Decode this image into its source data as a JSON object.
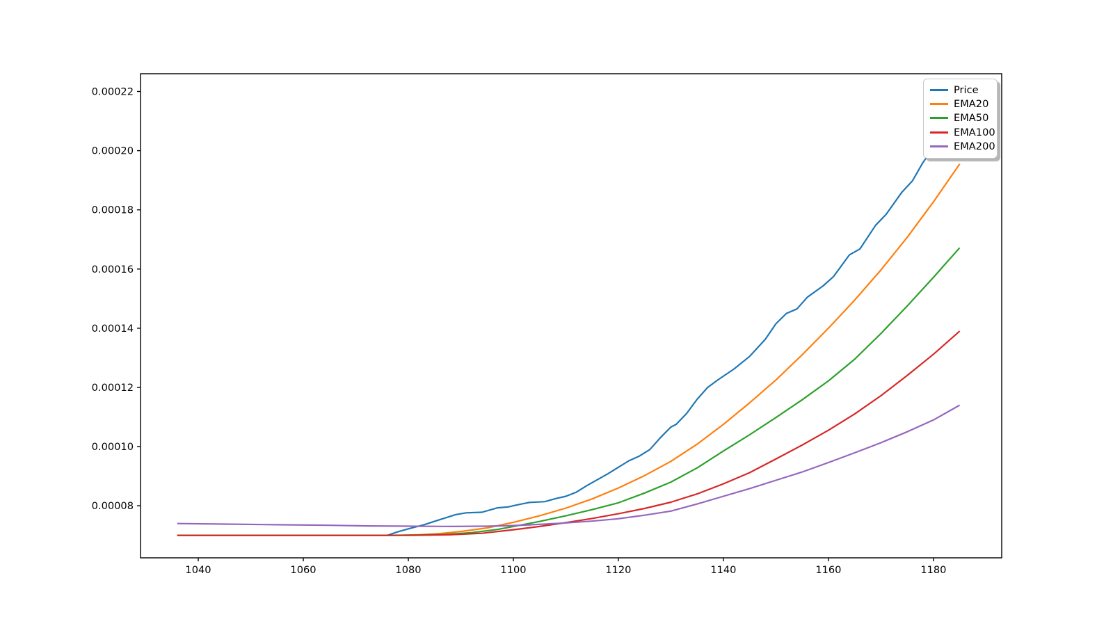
{
  "figure": {
    "background": "#ffffff",
    "text_color": "#000000",
    "spine_color": "#000000"
  },
  "chart_data": {
    "type": "line",
    "title": "",
    "xlabel": "",
    "ylabel": "",
    "grid": false,
    "xlim": [
      1029,
      1193
    ],
    "ylim": [
      6.24e-05,
      0.000226
    ],
    "x_ticks": [
      1040,
      1060,
      1080,
      1100,
      1120,
      1140,
      1160,
      1180
    ],
    "x_tick_labels": [
      "1040",
      "1060",
      "1080",
      "1100",
      "1120",
      "1140",
      "1160",
      "1180"
    ],
    "y_ticks": [
      8e-05,
      0.0001,
      0.00012,
      0.00014,
      0.00016,
      0.00018,
      0.0002,
      0.00022
    ],
    "y_tick_labels": [
      "0.00008",
      "0.00010",
      "0.00012",
      "0.00014",
      "0.00016",
      "0.00018",
      "0.00020",
      "0.00022"
    ],
    "legend": {
      "position": "upper right",
      "entries": [
        "Price",
        "EMA20",
        "EMA50",
        "EMA100",
        "EMA200"
      ]
    },
    "series": [
      {
        "name": "Price",
        "color": "#1f77b4",
        "points": [
          [
            1036,
            7e-05
          ],
          [
            1050,
            7e-05
          ],
          [
            1062,
            7e-05
          ],
          [
            1070,
            7e-05
          ],
          [
            1076,
            7e-05
          ],
          [
            1078,
            7.12e-05
          ],
          [
            1080,
            7.22e-05
          ],
          [
            1083,
            7.36e-05
          ],
          [
            1086,
            7.53e-05
          ],
          [
            1089,
            7.7e-05
          ],
          [
            1091,
            7.76e-05
          ],
          [
            1094,
            7.78e-05
          ],
          [
            1097,
            7.93e-05
          ],
          [
            1099,
            7.96e-05
          ],
          [
            1101,
            8.04e-05
          ],
          [
            1103,
            8.11e-05
          ],
          [
            1106,
            8.14e-05
          ],
          [
            1108,
            8.24e-05
          ],
          [
            1110,
            8.32e-05
          ],
          [
            1112,
            8.46e-05
          ],
          [
            1114,
            8.68e-05
          ],
          [
            1116,
            8.88e-05
          ],
          [
            1118,
            9.08e-05
          ],
          [
            1120,
            9.3e-05
          ],
          [
            1122,
            9.52e-05
          ],
          [
            1124,
            9.68e-05
          ],
          [
            1126,
            9.9e-05
          ],
          [
            1128,
            0.000103
          ],
          [
            1130,
            0.0001066
          ],
          [
            1131,
            0.0001075
          ],
          [
            1133,
            0.0001112
          ],
          [
            1135,
            0.000116
          ],
          [
            1137,
            0.00012
          ],
          [
            1139,
            0.0001226
          ],
          [
            1142,
            0.0001262
          ],
          [
            1145,
            0.0001305
          ],
          [
            1148,
            0.0001363
          ],
          [
            1150,
            0.0001415
          ],
          [
            1152,
            0.000145
          ],
          [
            1154,
            0.0001465
          ],
          [
            1156,
            0.0001505
          ],
          [
            1159,
            0.0001543
          ],
          [
            1161,
            0.0001575
          ],
          [
            1164,
            0.0001648
          ],
          [
            1166,
            0.0001668
          ],
          [
            1169,
            0.0001748
          ],
          [
            1171,
            0.0001785
          ],
          [
            1174,
            0.000186
          ],
          [
            1176,
            0.0001898
          ],
          [
            1178,
            0.000196
          ],
          [
            1180,
            0.000201
          ],
          [
            1182,
            0.0002072
          ],
          [
            1185,
            0.0002165
          ]
        ]
      },
      {
        "name": "EMA20",
        "color": "#ff7f0e",
        "points": [
          [
            1036,
            7e-05
          ],
          [
            1060,
            7e-05
          ],
          [
            1074,
            7e-05
          ],
          [
            1078,
            7e-05
          ],
          [
            1082,
            7.02e-05
          ],
          [
            1086,
            7.06e-05
          ],
          [
            1090,
            7.13e-05
          ],
          [
            1095,
            7.25e-05
          ],
          [
            1100,
            7.44e-05
          ],
          [
            1105,
            7.66e-05
          ],
          [
            1110,
            7.92e-05
          ],
          [
            1115,
            8.23e-05
          ],
          [
            1120,
            8.6e-05
          ],
          [
            1125,
            9.02e-05
          ],
          [
            1130,
            9.5e-05
          ],
          [
            1135,
            0.0001008
          ],
          [
            1140,
            0.0001075
          ],
          [
            1145,
            0.0001148
          ],
          [
            1150,
            0.0001225
          ],
          [
            1155,
            0.000131
          ],
          [
            1160,
            0.00014
          ],
          [
            1165,
            0.0001495
          ],
          [
            1170,
            0.0001597
          ],
          [
            1175,
            0.0001707
          ],
          [
            1180,
            0.0001827
          ],
          [
            1185,
            0.0001955
          ]
        ]
      },
      {
        "name": "EMA50",
        "color": "#2ca02c",
        "points": [
          [
            1036,
            7e-05
          ],
          [
            1060,
            7e-05
          ],
          [
            1075,
            7e-05
          ],
          [
            1082,
            7.01e-05
          ],
          [
            1087,
            7.03e-05
          ],
          [
            1092,
            7.09e-05
          ],
          [
            1097,
            7.2e-05
          ],
          [
            1100,
            7.3e-05
          ],
          [
            1105,
            7.47e-05
          ],
          [
            1110,
            7.66e-05
          ],
          [
            1115,
            7.87e-05
          ],
          [
            1120,
            8.1e-05
          ],
          [
            1125,
            8.43e-05
          ],
          [
            1130,
            8.8e-05
          ],
          [
            1135,
            9.28e-05
          ],
          [
            1140,
            9.85e-05
          ],
          [
            1145,
            0.000104
          ],
          [
            1150,
            0.0001098
          ],
          [
            1155,
            0.0001158
          ],
          [
            1160,
            0.0001222
          ],
          [
            1165,
            0.0001295
          ],
          [
            1170,
            0.0001382
          ],
          [
            1175,
            0.0001475
          ],
          [
            1180,
            0.0001572
          ],
          [
            1185,
            0.0001672
          ]
        ]
      },
      {
        "name": "EMA100",
        "color": "#d62728",
        "points": [
          [
            1036,
            7e-05
          ],
          [
            1060,
            7e-05
          ],
          [
            1080,
            7e-05
          ],
          [
            1088,
            7.02e-05
          ],
          [
            1094,
            7.07e-05
          ],
          [
            1100,
            7.19e-05
          ],
          [
            1105,
            7.3e-05
          ],
          [
            1110,
            7.43e-05
          ],
          [
            1115,
            7.57e-05
          ],
          [
            1120,
            7.73e-05
          ],
          [
            1125,
            7.91e-05
          ],
          [
            1130,
            8.12e-05
          ],
          [
            1135,
            8.4e-05
          ],
          [
            1140,
            8.74e-05
          ],
          [
            1145,
            9.12e-05
          ],
          [
            1150,
            9.58e-05
          ],
          [
            1155,
            0.0001005
          ],
          [
            1160,
            0.0001055
          ],
          [
            1165,
            0.000111
          ],
          [
            1170,
            0.0001172
          ],
          [
            1175,
            0.000124
          ],
          [
            1180,
            0.0001312
          ],
          [
            1185,
            0.000139
          ]
        ]
      },
      {
        "name": "EMA200",
        "color": "#9467bd",
        "points": [
          [
            1036,
            7.4e-05
          ],
          [
            1045,
            7.38e-05
          ],
          [
            1055,
            7.36e-05
          ],
          [
            1065,
            7.34e-05
          ],
          [
            1072,
            7.32e-05
          ],
          [
            1080,
            7.31e-05
          ],
          [
            1088,
            7.3e-05
          ],
          [
            1095,
            7.31e-05
          ],
          [
            1100,
            7.33e-05
          ],
          [
            1105,
            7.37e-05
          ],
          [
            1110,
            7.42e-05
          ],
          [
            1115,
            7.48e-05
          ],
          [
            1120,
            7.56e-05
          ],
          [
            1125,
            7.68e-05
          ],
          [
            1130,
            7.82e-05
          ],
          [
            1135,
            8.06e-05
          ],
          [
            1140,
            8.32e-05
          ],
          [
            1145,
            8.58e-05
          ],
          [
            1150,
            8.86e-05
          ],
          [
            1155,
            9.14e-05
          ],
          [
            1160,
            9.46e-05
          ],
          [
            1165,
            9.79e-05
          ],
          [
            1170,
            0.0001013
          ],
          [
            1175,
            0.000105
          ],
          [
            1180,
            0.000109
          ],
          [
            1185,
            0.000114
          ]
        ]
      }
    ]
  }
}
